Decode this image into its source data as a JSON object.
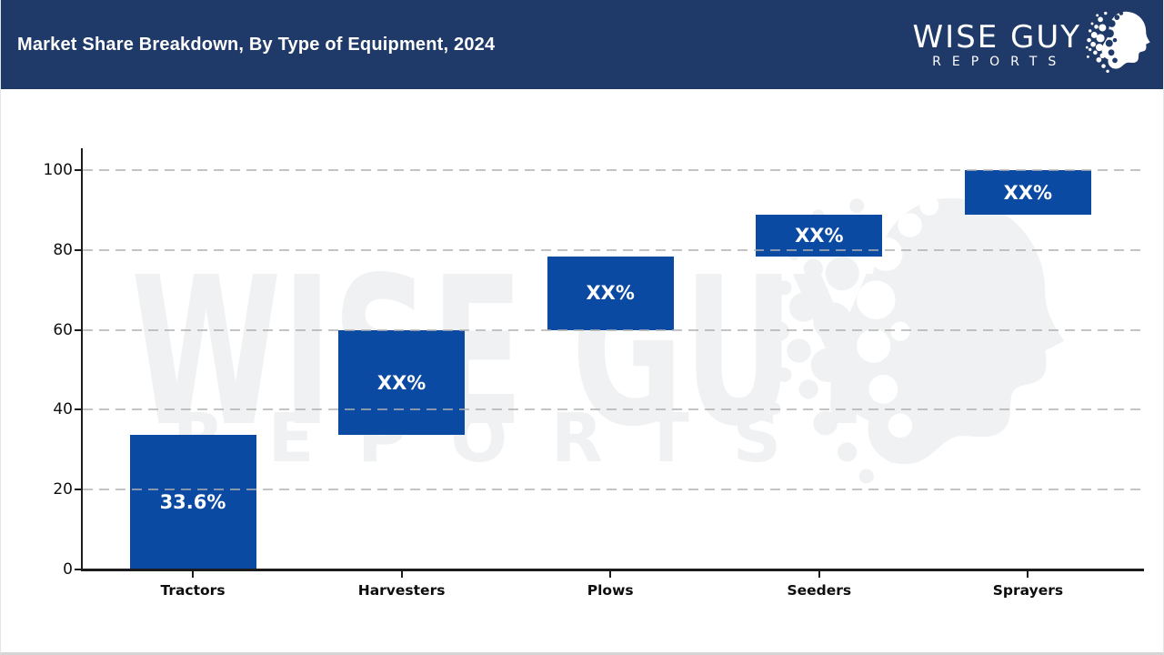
{
  "header": {
    "title": "Market Share Breakdown, By Type of Equipment, 2024",
    "logo": {
      "line1": "WISE GUY",
      "line2": "REPORTS"
    }
  },
  "watermark": {
    "line1": "WISE GUY",
    "line2": "REPORTS"
  },
  "colors": {
    "header_bg": "#1f3a68",
    "bar": "#0b4aa2",
    "bar_label": "#ffffff",
    "axis": "#1c1c1c",
    "gridline": "#d9d9d9",
    "watermark": "#eff1f3"
  },
  "chart_data": {
    "type": "bar",
    "subtype": "waterfall",
    "title": "Market Share Breakdown, By Type of Equipment, 2024",
    "categories": [
      "Tractors",
      "Harvesters",
      "Plows",
      "Seeders",
      "Sprayers"
    ],
    "segments": [
      {
        "category": "Tractors",
        "start": 0,
        "end": 33.6,
        "label": "33.6%"
      },
      {
        "category": "Harvesters",
        "start": 33.6,
        "end": 60.0,
        "label": "XX%"
      },
      {
        "category": "Plows",
        "start": 60.0,
        "end": 78.4,
        "label": "XX%"
      },
      {
        "category": "Seeders",
        "start": 78.4,
        "end": 88.8,
        "label": "XX%"
      },
      {
        "category": "Sprayers",
        "start": 88.8,
        "end": 100.0,
        "label": "XX%"
      }
    ],
    "xlabel": "",
    "ylabel": "",
    "ylim": [
      0,
      100
    ],
    "yticks": [
      0,
      20,
      40,
      60,
      80,
      100
    ],
    "grid": "horizontal-dashed",
    "legend": "none"
  }
}
